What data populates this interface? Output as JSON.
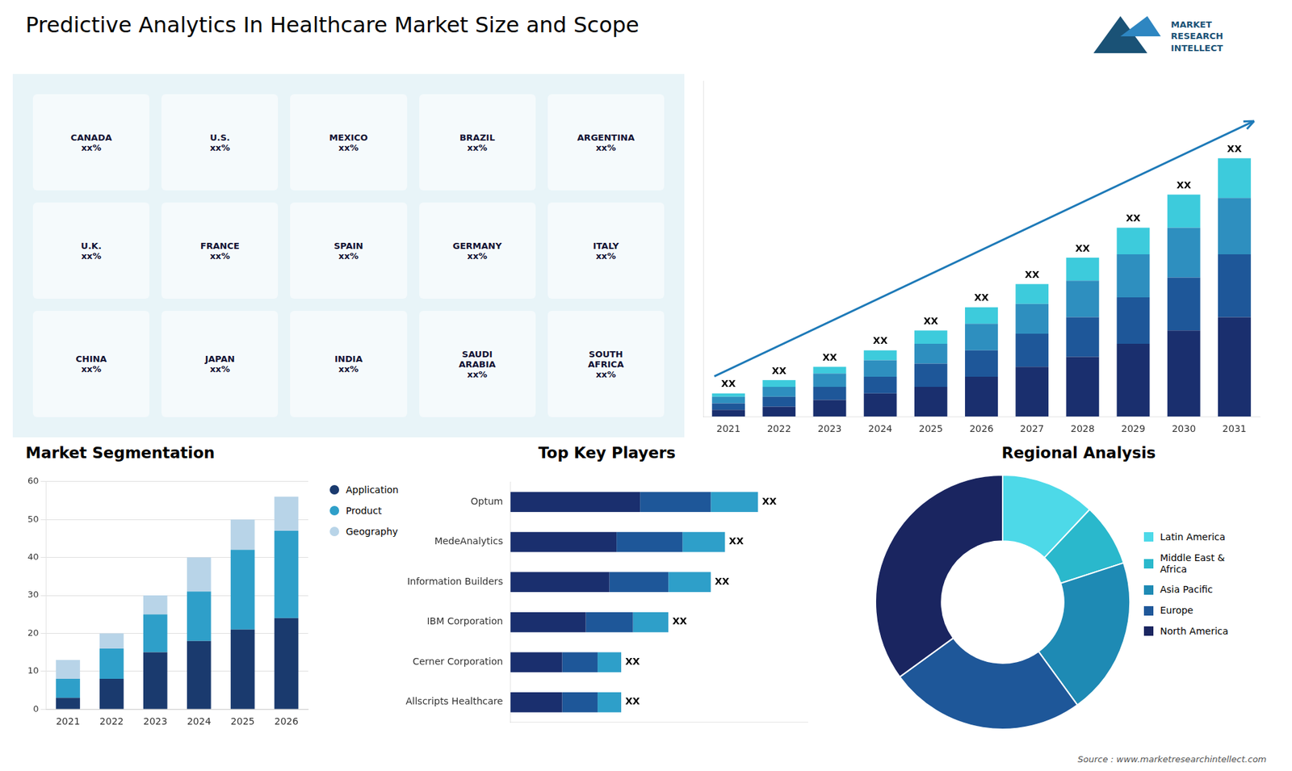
{
  "title": "Predictive Analytics In Healthcare Market Size and Scope",
  "annotations": [
    "Source : www.marketresearchintellect.com",
    "MARKET",
    "RESEARCH",
    "INTELLECT"
  ],
  "chart_data": [
    {
      "type": "map",
      "color": "#e8f4f8",
      "annotations": [
        "CANADA\nxx%",
        "U.S.\nxx%",
        "MEXICO\nxx%",
        "BRAZIL\nxx%",
        "ARGENTINA\nxx%",
        "U.K.\nxx%",
        "FRANCE\nxx%",
        "SPAIN\nxx%",
        "GERMANY\nxx%",
        "ITALY\nxx%",
        "CHINA\nxx%",
        "JAPAN\nxx%",
        "INDIA\nxx%",
        "SAUDI\nARABIA\nxx%",
        "SOUTH\nAFRICA\nxx%"
      ]
    },
    {
      "type": "bar",
      "stacked": true,
      "categories": [
        "2021",
        "2022",
        "2023",
        "2024",
        "2025",
        "2026",
        "2027",
        "2028",
        "2029",
        "2030",
        "2031"
      ],
      "series": [
        {
          "color": "#1a2f6e",
          "values": [
            2,
            3,
            5,
            7,
            9,
            12,
            15,
            18,
            22,
            26,
            30
          ]
        },
        {
          "color": "#1e5799",
          "values": [
            2,
            3,
            4,
            5,
            7,
            8,
            10,
            12,
            14,
            16,
            19
          ]
        },
        {
          "color": "#2e8fbf",
          "values": [
            2,
            3,
            4,
            5,
            6,
            8,
            9,
            11,
            13,
            15,
            17
          ]
        },
        {
          "color": "#3dcbdc",
          "values": [
            1,
            2,
            2,
            3,
            4,
            5,
            6,
            7,
            8,
            10,
            12
          ]
        }
      ],
      "annotations": [
        "XX",
        "XX",
        "XX",
        "XX",
        "XX",
        "XX",
        "XX",
        "XX",
        "XX",
        "XX",
        "XX"
      ],
      "ylim": [
        0,
        101.4
      ],
      "tick_labels": "x",
      "grid": false
    },
    {
      "type": "bar",
      "title": "Market Segmentation",
      "stacked": true,
      "categories": [
        "2021",
        "2022",
        "2023",
        "2024",
        "2025",
        "2026"
      ],
      "series": [
        {
          "name": "Application",
          "color": "#1a3a6e",
          "values": [
            3,
            8,
            15,
            18,
            21,
            24
          ]
        },
        {
          "name": "Product",
          "color": "#2e9fc9",
          "values": [
            5,
            8,
            10,
            13,
            21,
            23
          ]
        },
        {
          "name": "Geography",
          "color": "#b8d4e8",
          "values": [
            5,
            4,
            5,
            9,
            8,
            9
          ]
        }
      ],
      "ylim": [
        0,
        60
      ],
      "yticks": [
        0,
        10,
        20,
        30,
        40,
        50,
        60
      ],
      "grid": true,
      "legend": "right",
      "marker": "circle"
    },
    {
      "type": "bar",
      "title": "Top Key Players",
      "orientation": "horizontal",
      "stacked": true,
      "categories": [
        "Optum",
        "MedeAnalytics",
        "Information Builders",
        "IBM Corporation",
        "Cerner Corporation",
        "Allscripts Healthcare"
      ],
      "series": [
        {
          "color": "#1a2f6e",
          "values": [
            5.5,
            4.5,
            4.2,
            3.2,
            2.2,
            2.2
          ]
        },
        {
          "color": "#1e5799",
          "values": [
            3.0,
            2.8,
            2.5,
            2.0,
            1.5,
            1.5
          ]
        },
        {
          "color": "#2e9fc9",
          "values": [
            2.0,
            1.8,
            1.8,
            1.5,
            1.0,
            1.0
          ]
        }
      ],
      "annotations": [
        "XX",
        "XX",
        "XX",
        "XX",
        "XX",
        "XX"
      ],
      "xlim": [
        0,
        12.6
      ],
      "tick_labels": "y",
      "grid": false
    },
    {
      "type": "doughnut",
      "title": "Regional Analysis",
      "categories": [
        "Latin America",
        "Middle East &\nAfrica",
        "Asia Pacific",
        "Europe",
        "North America"
      ],
      "values": [
        12,
        8,
        20,
        25,
        35
      ],
      "colors": [
        "#4dd9e8",
        "#2ab8cc",
        "#1e8ab4",
        "#1e5799",
        "#1a2560"
      ],
      "legend": "right"
    }
  ]
}
